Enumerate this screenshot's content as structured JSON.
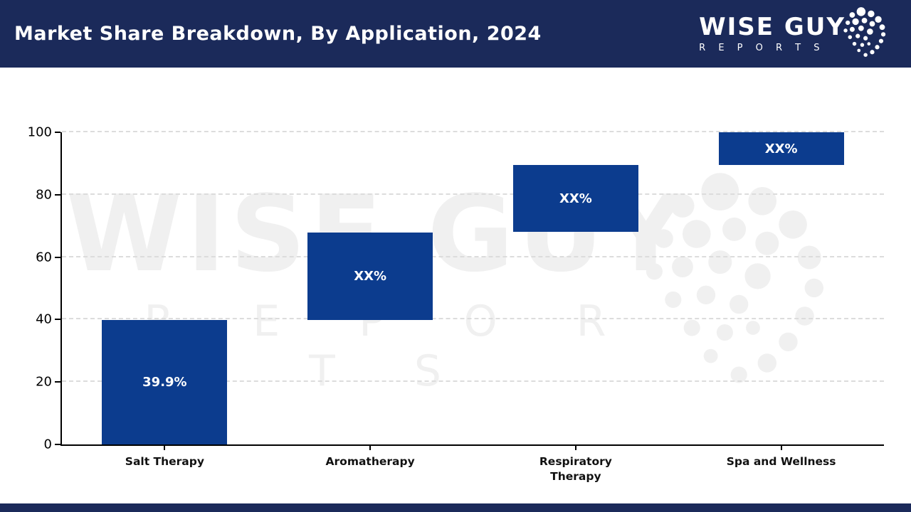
{
  "header": {
    "title": "Market Share Breakdown, By Application, 2024",
    "bg_color": "#1b2a5a",
    "logo": {
      "line1": "WISE GUY",
      "line2": "R E P O R T S"
    }
  },
  "watermark": {
    "line1": "WISE GUY",
    "line2": "R E P O R T S"
  },
  "chart_data": {
    "type": "bar",
    "subtype": "waterfall",
    "title": "Market Share Breakdown, By Application, 2024",
    "categories": [
      "Salt Therapy",
      "Aromatherapy",
      "Respiratory Therapy",
      "Spa and Wellness"
    ],
    "bars": [
      {
        "category": "Salt Therapy",
        "label_lines": [
          "Salt Therapy"
        ],
        "start": 0,
        "end": 39.9,
        "label": "39.9%"
      },
      {
        "category": "Aromatherapy",
        "label_lines": [
          "Aromatherapy"
        ],
        "start": 39.9,
        "end": 68.0,
        "label": "XX%"
      },
      {
        "category": "Respiratory Therapy",
        "label_lines": [
          "Respiratory",
          "Therapy"
        ],
        "start": 68.0,
        "end": 89.5,
        "label": "XX%"
      },
      {
        "category": "Spa and Wellness",
        "label_lines": [
          "Spa and Wellness"
        ],
        "start": 89.5,
        "end": 100,
        "label": "XX%"
      }
    ],
    "ylim": [
      0,
      100
    ],
    "yticks": [
      0,
      20,
      40,
      60,
      80,
      100
    ],
    "bar_color": "#0c3c8e",
    "bar_label_color": "#ffffff",
    "grid": "dashed horizontal gridlines",
    "legend": "none"
  }
}
